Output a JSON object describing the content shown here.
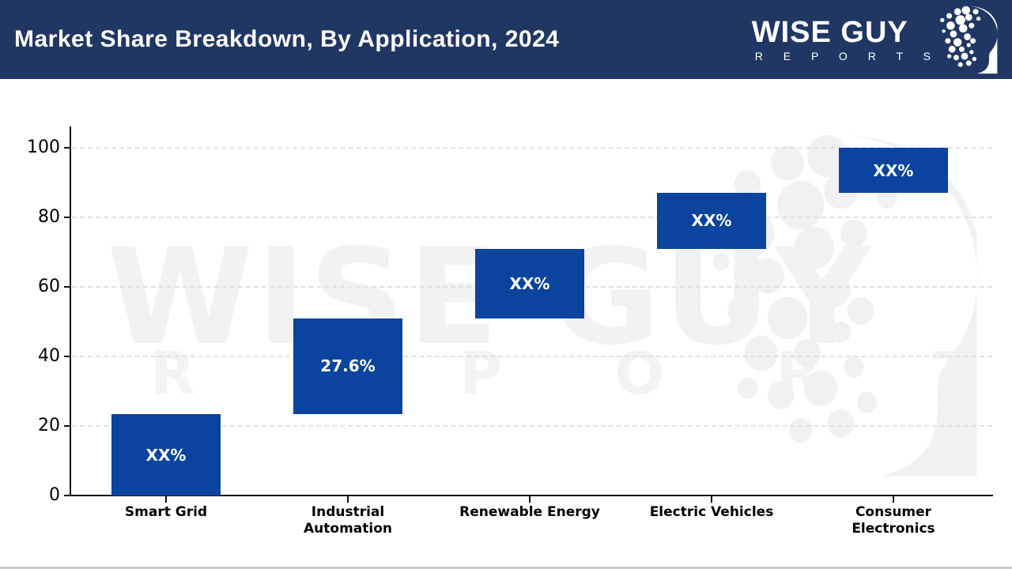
{
  "header": {
    "title": "Market Share Breakdown, By Application, 2024",
    "bg_color": "#203764",
    "logo": {
      "line1": "WISE GUY",
      "line2": "R E P O R T S"
    }
  },
  "watermark": {
    "line1": "WISE GUY",
    "line2": "R E P O R T S"
  },
  "chart_data": {
    "type": "bar",
    "subtype": "waterfall",
    "title": "Market Share Breakdown, By Application, 2024",
    "xlabel": "",
    "ylabel": "",
    "ylim": [
      0,
      100
    ],
    "yticks": [
      0,
      20,
      40,
      60,
      80,
      100
    ],
    "grid": "horizontal-dashed",
    "legend": "none",
    "bar_color": "#0A449E",
    "categories": [
      "Smart Grid",
      "Industrial\nAutomation",
      "Renewable Energy",
      "Electric Vehicles",
      "Consumer\nElectronics"
    ],
    "segments": [
      {
        "category": "Smart Grid",
        "start": 0,
        "end": 23.4,
        "value": 23.4,
        "label": "XX%"
      },
      {
        "category": "Industrial Automation",
        "start": 23.4,
        "end": 51,
        "value": 27.6,
        "label": "27.6%"
      },
      {
        "category": "Renewable Energy",
        "start": 51,
        "end": 71,
        "value": 20,
        "label": "XX%"
      },
      {
        "category": "Electric Vehicles",
        "start": 71,
        "end": 87,
        "value": 16,
        "label": "XX%"
      },
      {
        "category": "Consumer Electronics",
        "start": 87,
        "end": 100,
        "value": 13,
        "label": "XX%"
      }
    ]
  }
}
